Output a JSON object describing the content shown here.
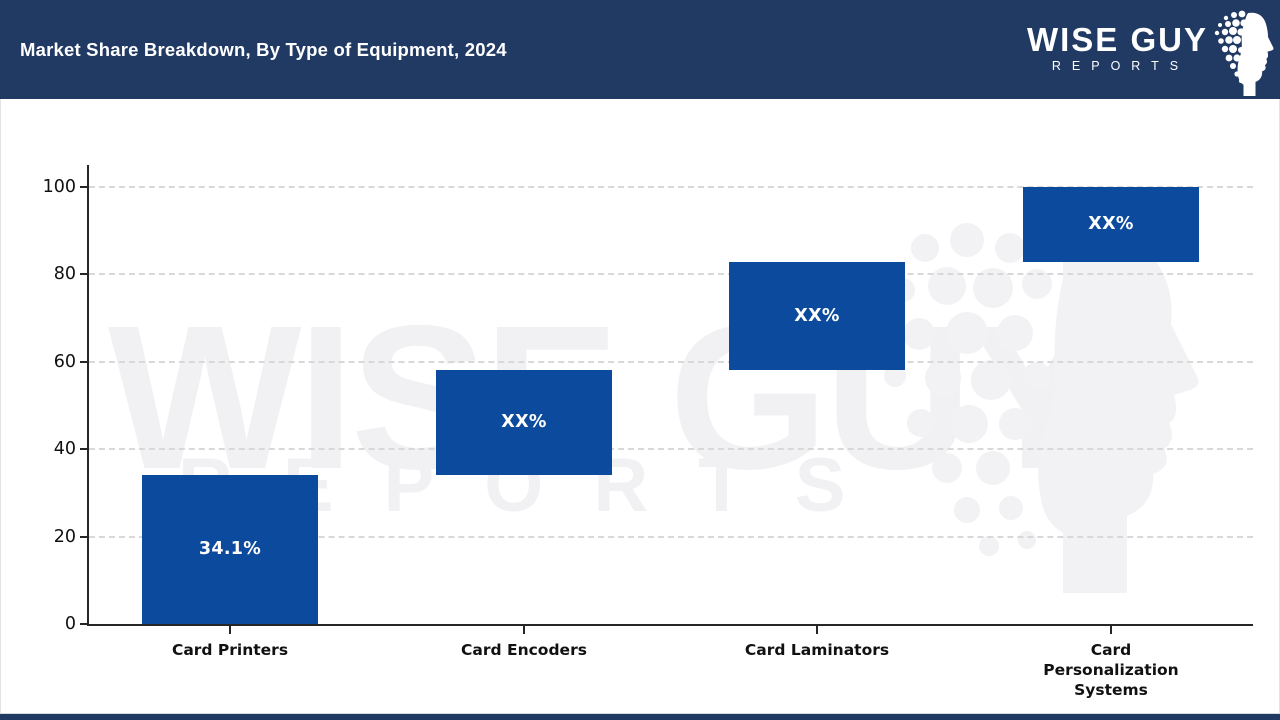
{
  "header": {
    "title": "Market Share Breakdown, By Type of Equipment, 2024",
    "logo": {
      "line1": "WISE GUY",
      "line2": "REPORTS"
    }
  },
  "watermark": {
    "line1": "WISE GUY",
    "line2": "REPORTS"
  },
  "colors": {
    "header_bg": "#213A64",
    "bar": "#0B4A9C",
    "grid": "#d8d8d8",
    "axis": "#262626",
    "bar_label": "#ffffff",
    "watermark": "#f1f1f4"
  },
  "chart_data": {
    "type": "bar",
    "subtype": "waterfall",
    "title": "Market Share Breakdown, By Type of Equipment, 2024",
    "xlabel": "",
    "ylabel": "",
    "ylim": [
      0,
      100
    ],
    "yticks": [
      0,
      20,
      40,
      60,
      80,
      100
    ],
    "grid": "horizontal-dashed",
    "legend": "none",
    "categories": [
      "Card Printers",
      "Card Encoders",
      "Card Laminators",
      "Card Personalization Systems"
    ],
    "segments": [
      {
        "category": "Card Printers",
        "start": 0,
        "end": 34.1,
        "label": "34.1%"
      },
      {
        "category": "Card Encoders",
        "start": 34.1,
        "end": 58.2,
        "label": "XX%"
      },
      {
        "category": "Card Laminators",
        "start": 58.2,
        "end": 82.9,
        "label": "XX%"
      },
      {
        "category": "Card Personalization Systems",
        "start": 82.9,
        "end": 100,
        "label": "XX%"
      }
    ]
  }
}
